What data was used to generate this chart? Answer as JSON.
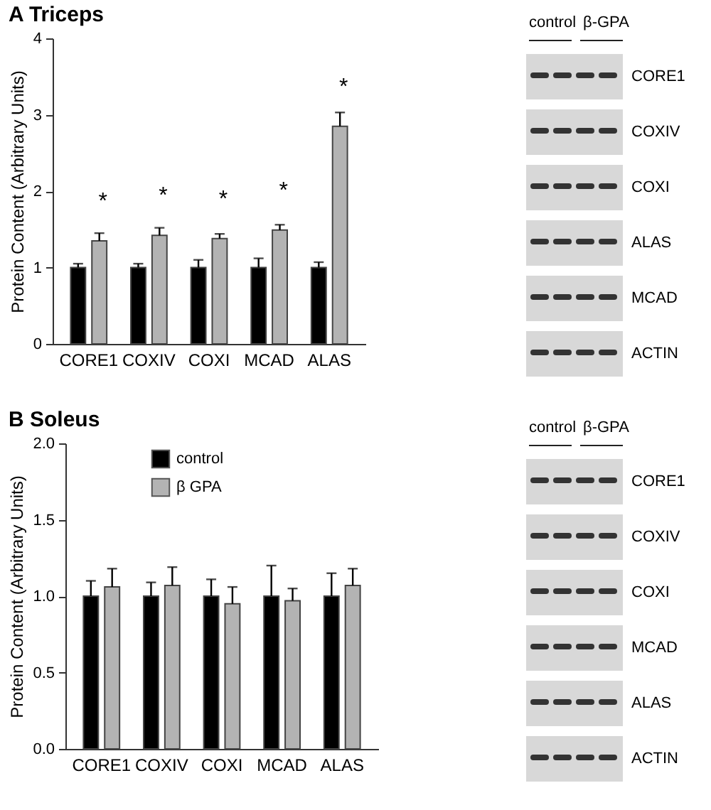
{
  "chart_data": [
    {
      "type": "bar",
      "title": "A Triceps",
      "ylabel": "Protein Content (Arbitrary Units)",
      "categories": [
        "CORE1",
        "COXIV",
        "COXI",
        "MCAD",
        "ALAS"
      ],
      "series": [
        {
          "color": "#000000",
          "values": [
            1.0,
            1.0,
            1.0,
            1.0,
            1.0
          ],
          "errors": [
            0.05,
            0.05,
            0.1,
            0.12,
            0.07
          ]
        },
        {
          "color": "#b3b3b3",
          "values": [
            1.35,
            1.42,
            1.38,
            1.49,
            2.85
          ],
          "errors": [
            0.1,
            0.1,
            0.06,
            0.07,
            0.18
          ]
        }
      ],
      "ylim": [
        0,
        4
      ],
      "yticks": [
        0,
        1,
        2,
        3,
        4
      ],
      "grid": false,
      "legend": false,
      "annotations": [
        {
          "text": "*",
          "x": "CORE1",
          "y": 1.35
        },
        {
          "text": "*",
          "x": "COXIV",
          "y": 1.42
        },
        {
          "text": "*",
          "x": "COXI",
          "y": 1.38
        },
        {
          "text": "*",
          "x": "MCAD",
          "y": 1.49
        },
        {
          "text": "*",
          "x": "ALAS",
          "y": 2.85
        },
        "control",
        "β-GPA",
        "CORE1",
        "COXIV",
        "COXI",
        "ALAS",
        "MCAD",
        "ACTIN"
      ]
    },
    {
      "type": "bar",
      "title": "B Soleus",
      "ylabel": "Protein Content (Arbitrary Units)",
      "categories": [
        "CORE1",
        "COXIV",
        "COXI",
        "MCAD",
        "ALAS"
      ],
      "series": [
        {
          "name": "control",
          "color": "#000000",
          "values": [
            1.0,
            1.0,
            1.0,
            1.0,
            1.0
          ],
          "errors": [
            0.1,
            0.09,
            0.11,
            0.2,
            0.15
          ]
        },
        {
          "name": "β GPA",
          "color": "#b3b3b3",
          "values": [
            1.06,
            1.07,
            0.95,
            0.97,
            1.07
          ],
          "errors": [
            0.12,
            0.12,
            0.11,
            0.08,
            0.11
          ]
        }
      ],
      "ylim": [
        0,
        2
      ],
      "yticks": [
        {
          "value": 0,
          "label": "0.0"
        },
        {
          "value": 0.5,
          "label": "0.5"
        },
        {
          "value": 1,
          "label": "1.0"
        },
        {
          "value": 1.5,
          "label": "1.5"
        },
        {
          "value": 2,
          "label": "2.0"
        }
      ],
      "grid": false,
      "legend": "top left",
      "annotations": [
        "control",
        "β-GPA",
        "CORE1",
        "COXIV",
        "COXI",
        "MCAD",
        "ALAS",
        "ACTIN"
      ]
    }
  ]
}
